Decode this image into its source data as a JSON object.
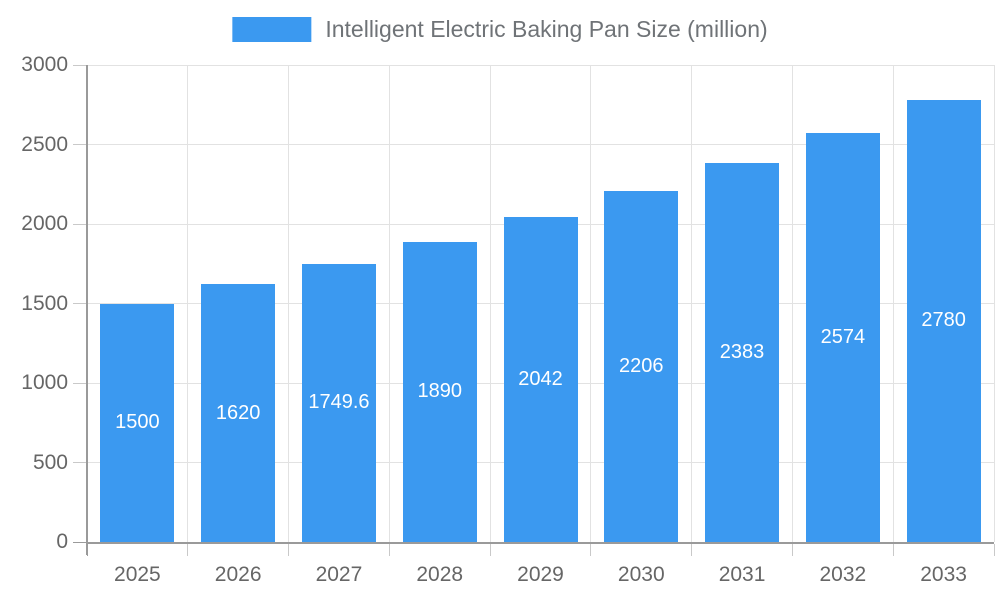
{
  "chart_data": {
    "type": "bar",
    "title": "Intelligent Electric Baking Pan Size (million)",
    "categories": [
      "2025",
      "2026",
      "2027",
      "2028",
      "2029",
      "2030",
      "2031",
      "2032",
      "2033"
    ],
    "values": [
      1500,
      1620,
      1749.6,
      1890,
      2042,
      2206,
      2383,
      2574,
      2780
    ],
    "value_labels": [
      "1500",
      "1620",
      "1749.6",
      "1890",
      "2042",
      "2206",
      "2383",
      "2574",
      "2780"
    ],
    "xlabel": "",
    "ylabel": "",
    "ylim": [
      0,
      3000
    ],
    "yticks": [
      0,
      500,
      1000,
      1500,
      2000,
      2500,
      3000
    ],
    "ytick_labels": [
      "0",
      "500",
      "1000",
      "1500",
      "2000",
      "2500",
      "3000"
    ],
    "grid": true,
    "legend_position": "top-center",
    "bar_label_position": "inside-center",
    "colors": {
      "bar": "#3B99F0",
      "grid_line": "#E2E2E2",
      "tick_line": "#C9C9C9",
      "axis_line": "#9A9A9A",
      "axis_label": "#666666",
      "legend_text": "#6F7377",
      "bar_label": "#FFFFFF",
      "background": "#FFFFFF"
    }
  }
}
